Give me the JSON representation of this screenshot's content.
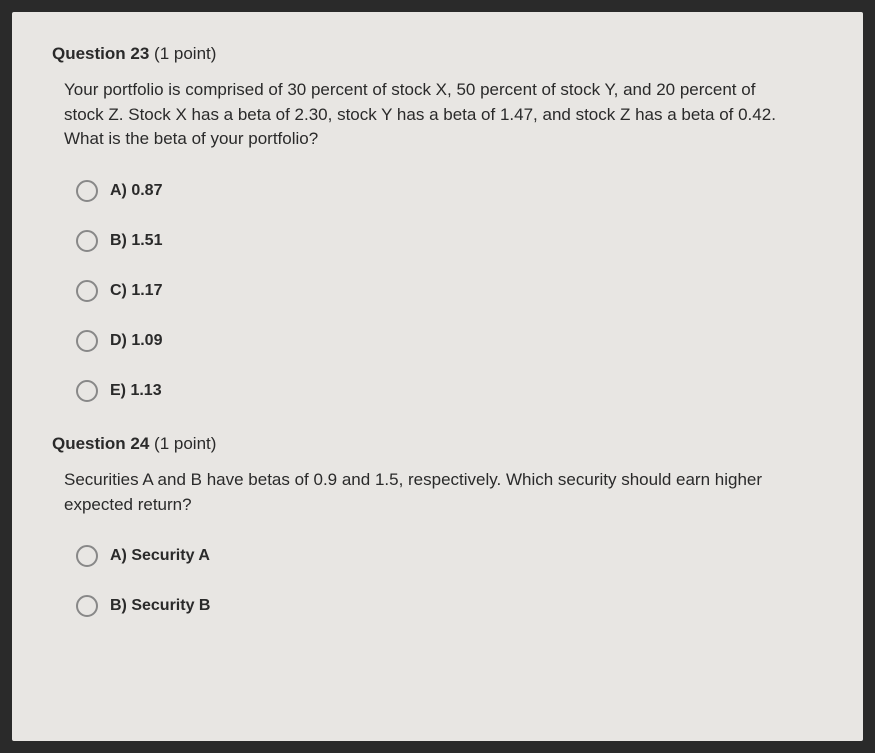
{
  "background_color": "#2a2a2a",
  "content_background": "#e8e6e3",
  "text_color": "#2a2a2a",
  "radio_border_color": "#888888",
  "questions": [
    {
      "number": "Question 23",
      "points": "(1 point)",
      "text": "Your portfolio is comprised of 30 percent of stock X, 50 percent of stock Y, and 20 percent of stock Z. Stock X has a beta of 2.30, stock Y has a beta of 1.47, and stock Z has a beta of 0.42. What is the beta of your portfolio?",
      "options": [
        {
          "label": "A) 0.87"
        },
        {
          "label": "B) 1.51"
        },
        {
          "label": "C) 1.17"
        },
        {
          "label": "D) 1.09"
        },
        {
          "label": "E) 1.13"
        }
      ]
    },
    {
      "number": "Question 24",
      "points": "(1 point)",
      "text": "Securities A and B have betas of 0.9 and 1.5, respectively. Which security should earn higher expected return?",
      "options": [
        {
          "label": "A) Security A"
        },
        {
          "label": "B) Security B"
        }
      ]
    }
  ]
}
